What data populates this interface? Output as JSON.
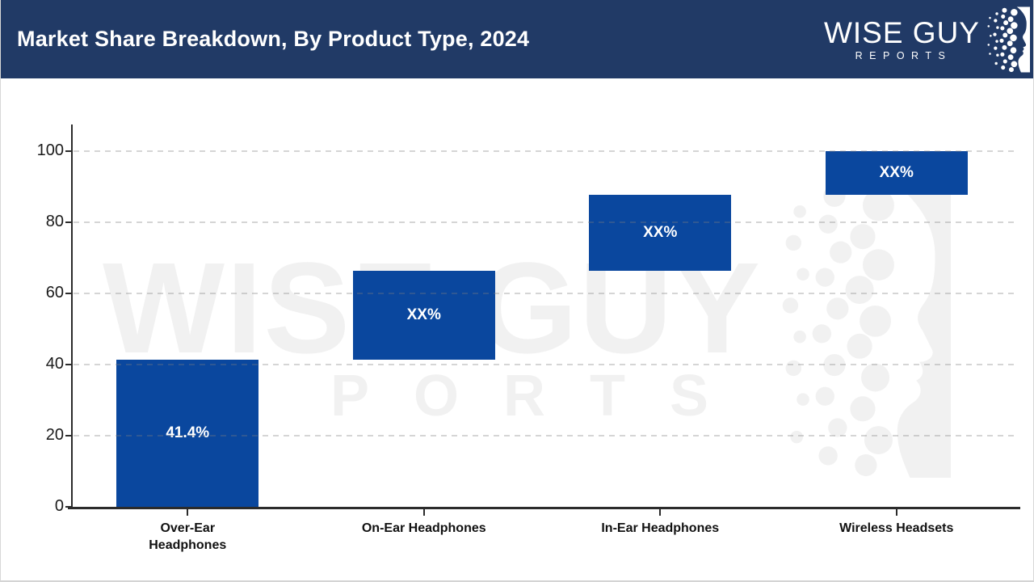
{
  "header": {
    "title": "Market Share Breakdown, By Product Type, 2024",
    "bg_color": "#213A66",
    "logo": {
      "line1": "WISE GUY",
      "line2": "REPORTS"
    }
  },
  "watermark": {
    "line1": "WISE GUY",
    "line2": "PORTS",
    "color": "#f1f1f1"
  },
  "chart_data": {
    "type": "bar",
    "subtype": "waterfall",
    "title": "Market Share Breakdown, By Product Type, 2024",
    "xlabel": "",
    "ylabel": "",
    "categories": [
      "Over-Ear Headphones",
      "On-Ear Headphones",
      "In-Ear Headphones",
      "Wireless Headsets"
    ],
    "bars": [
      {
        "category": "Over-Ear Headphones",
        "display": "Over-Ear\nHeadphones",
        "start": 0,
        "end": 41.4,
        "label": "41.4%"
      },
      {
        "category": "On-Ear Headphones",
        "display": "On-Ear Headphones",
        "start": 41.4,
        "end": 66.4,
        "label": "XX%"
      },
      {
        "category": "In-Ear Headphones",
        "display": "In-Ear Headphones",
        "start": 66.4,
        "end": 87.7,
        "label": "XX%"
      },
      {
        "category": "Wireless Headsets",
        "display": "Wireless Headsets",
        "start": 87.7,
        "end": 100,
        "label": "XX%"
      }
    ],
    "yticks": [
      0,
      20,
      40,
      60,
      80,
      100
    ],
    "ylim": [
      0,
      106
    ],
    "grid": "dashed-horizontal",
    "legend": "none",
    "bar_color": "#0A479E",
    "bar_label_color": "#ffffff"
  }
}
